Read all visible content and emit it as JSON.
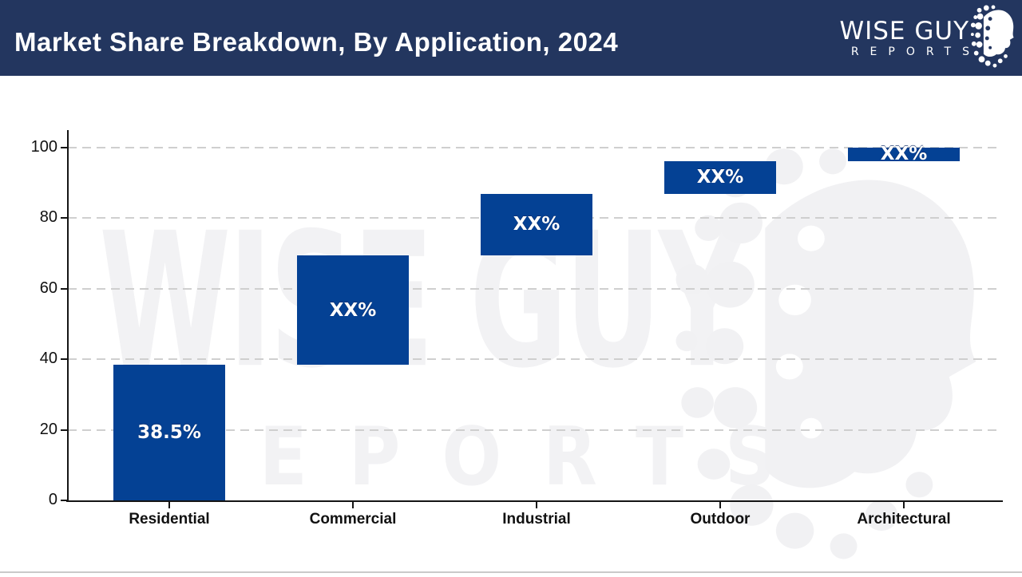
{
  "header": {
    "title": "Market Share Breakdown, By Application, 2024",
    "logo": {
      "line1": "WISE GUY",
      "line2": "REPORTS"
    }
  },
  "watermark": {
    "line1": "WISE GUY",
    "line2": "REPORTS"
  },
  "chart_data": {
    "type": "bar",
    "subtype": "waterfall",
    "title": "Market Share Breakdown, By Application, 2024",
    "categories": [
      "Residential",
      "Commercial",
      "Industrial",
      "Outdoor",
      "Architectural"
    ],
    "segments": [
      {
        "category": "Residential",
        "start": 0,
        "end": 38.5,
        "value_label": "38.5%"
      },
      {
        "category": "Commercial",
        "start": 38.5,
        "end": 69.4,
        "value_label": "XX%"
      },
      {
        "category": "Industrial",
        "start": 69.4,
        "end": 87.0,
        "value_label": "XX%"
      },
      {
        "category": "Outdoor",
        "start": 87.0,
        "end": 96.2,
        "value_label": "XX%"
      },
      {
        "category": "Architectural",
        "start": 96.2,
        "end": 100.0,
        "value_label": "XX%"
      }
    ],
    "yticks": [
      0,
      20,
      40,
      60,
      80,
      100
    ],
    "ylim": [
      0,
      105
    ],
    "xlabel": "",
    "ylabel": "",
    "grid": {
      "axis": "y",
      "style": "dashed",
      "color": "#cfcfcf"
    },
    "legend": "none",
    "bar_color": "#044194",
    "value_label_color": "#ffffff",
    "header_color": "#23365f"
  }
}
